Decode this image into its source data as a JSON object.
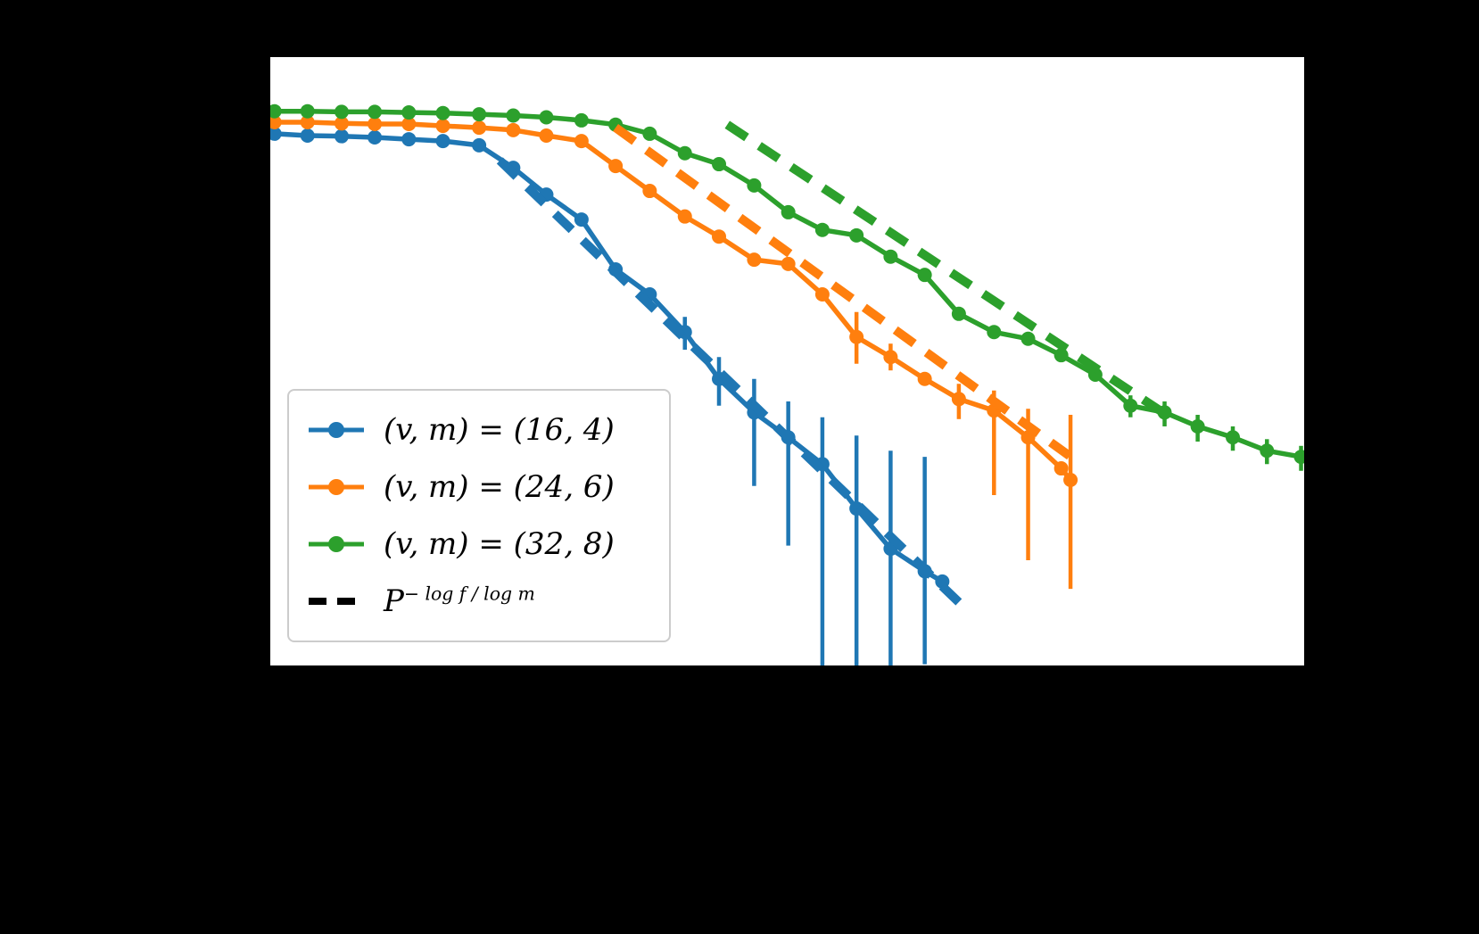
{
  "page": {
    "background_color": "#000000",
    "plot_background_color": "#ffffff",
    "axis_labels_visible": false
  },
  "chart_data": {
    "type": "line",
    "title": "",
    "xlabel": "",
    "ylabel": "",
    "grid": false,
    "legend_position": "lower-left",
    "note": "log-log style decay curves with error bars; axis tick labels not visible against black background; coordinates stored as fractions of plot area (x: 0=left..1=right, y: 0=top..1=bottom)",
    "series": [
      {
        "name": "(v, m) = (16, 4)",
        "color": "#1f77b4",
        "points": [
          [
            0.004,
            0.126
          ],
          [
            0.036,
            0.129
          ],
          [
            0.069,
            0.13
          ],
          [
            0.101,
            0.132
          ],
          [
            0.134,
            0.135
          ],
          [
            0.167,
            0.138
          ],
          [
            0.202,
            0.145
          ],
          [
            0.235,
            0.182
          ],
          [
            0.267,
            0.226
          ],
          [
            0.301,
            0.267
          ],
          [
            0.334,
            0.349
          ],
          [
            0.367,
            0.39
          ],
          [
            0.401,
            0.452
          ],
          [
            0.434,
            0.529
          ],
          [
            0.468,
            0.584
          ],
          [
            0.501,
            0.625
          ],
          [
            0.534,
            0.669
          ],
          [
            0.567,
            0.742
          ],
          [
            0.6,
            0.808
          ],
          [
            0.633,
            0.845
          ],
          [
            0.65,
            0.862
          ]
        ],
        "errorbars": [
          [
            0.401,
            0.427,
            0.481
          ],
          [
            0.434,
            0.493,
            0.573
          ],
          [
            0.468,
            0.529,
            0.705
          ],
          [
            0.501,
            0.566,
            0.803
          ],
          [
            0.534,
            0.592,
            1.0
          ],
          [
            0.567,
            0.622,
            1.0
          ],
          [
            0.6,
            0.647,
            1.0
          ],
          [
            0.633,
            0.657,
            0.998
          ]
        ]
      },
      {
        "name": "(v, m) = (24, 6)",
        "color": "#ff7f0e",
        "points": [
          [
            0.004,
            0.107
          ],
          [
            0.036,
            0.107
          ],
          [
            0.069,
            0.109
          ],
          [
            0.101,
            0.11
          ],
          [
            0.134,
            0.11
          ],
          [
            0.167,
            0.113
          ],
          [
            0.202,
            0.116
          ],
          [
            0.235,
            0.12
          ],
          [
            0.267,
            0.129
          ],
          [
            0.301,
            0.138
          ],
          [
            0.334,
            0.179
          ],
          [
            0.367,
            0.22
          ],
          [
            0.401,
            0.262
          ],
          [
            0.434,
            0.295
          ],
          [
            0.468,
            0.333
          ],
          [
            0.501,
            0.34
          ],
          [
            0.534,
            0.39
          ],
          [
            0.567,
            0.46
          ],
          [
            0.6,
            0.493
          ],
          [
            0.633,
            0.529
          ],
          [
            0.666,
            0.562
          ],
          [
            0.7,
            0.581
          ],
          [
            0.733,
            0.625
          ],
          [
            0.765,
            0.676
          ],
          [
            0.774,
            0.695
          ]
        ],
        "errorbars": [
          [
            0.567,
            0.419,
            0.504
          ],
          [
            0.6,
            0.471,
            0.515
          ],
          [
            0.666,
            0.537,
            0.595
          ],
          [
            0.7,
            0.548,
            0.72
          ],
          [
            0.733,
            0.578,
            0.827
          ],
          [
            0.774,
            0.588,
            0.874
          ]
        ]
      },
      {
        "name": "(v, m) = (32, 8)",
        "color": "#2ca02c",
        "points": [
          [
            0.004,
            0.089
          ],
          [
            0.036,
            0.089
          ],
          [
            0.069,
            0.09
          ],
          [
            0.101,
            0.09
          ],
          [
            0.134,
            0.091
          ],
          [
            0.167,
            0.092
          ],
          [
            0.202,
            0.094
          ],
          [
            0.235,
            0.096
          ],
          [
            0.267,
            0.099
          ],
          [
            0.301,
            0.104
          ],
          [
            0.334,
            0.111
          ],
          [
            0.367,
            0.126
          ],
          [
            0.401,
            0.158
          ],
          [
            0.434,
            0.176
          ],
          [
            0.468,
            0.211
          ],
          [
            0.501,
            0.255
          ],
          [
            0.534,
            0.284
          ],
          [
            0.567,
            0.293
          ],
          [
            0.6,
            0.328
          ],
          [
            0.633,
            0.358
          ],
          [
            0.666,
            0.422
          ],
          [
            0.7,
            0.452
          ],
          [
            0.733,
            0.463
          ],
          [
            0.765,
            0.49
          ],
          [
            0.798,
            0.522
          ],
          [
            0.832,
            0.573
          ],
          [
            0.865,
            0.584
          ],
          [
            0.897,
            0.607
          ],
          [
            0.931,
            0.625
          ],
          [
            0.964,
            0.647
          ],
          [
            0.997,
            0.657
          ]
        ],
        "errorbars": [
          [
            0.832,
            0.556,
            0.592
          ],
          [
            0.865,
            0.566,
            0.607
          ],
          [
            0.897,
            0.588,
            0.632
          ],
          [
            0.931,
            0.607,
            0.647
          ],
          [
            0.964,
            0.628,
            0.669
          ],
          [
            0.997,
            0.639,
            0.68
          ]
        ]
      }
    ],
    "fits": [
      {
        "for_series": "(v, m) = (16, 4)",
        "color": "#1f77b4",
        "from": [
          0.222,
          0.17
        ],
        "to": [
          0.666,
          0.896
        ]
      },
      {
        "for_series": "(v, m) = (24, 6)",
        "color": "#ff7f0e",
        "from": [
          0.334,
          0.116
        ],
        "to": [
          0.784,
          0.669
        ]
      },
      {
        "for_series": "(v, m) = (32, 8)",
        "color": "#2ca02c",
        "from": [
          0.442,
          0.111
        ],
        "to": [
          0.873,
          0.595
        ]
      }
    ],
    "legend": {
      "items": [
        {
          "label": "(v, m) = (16, 4)",
          "color": "#1f77b4",
          "type": "line-marker"
        },
        {
          "label": "(v, m) = (24, 6)",
          "color": "#ff7f0e",
          "type": "line-marker"
        },
        {
          "label": "(v, m) = (32, 8)",
          "color": "#2ca02c",
          "type": "line-marker"
        },
        {
          "label_base": "P",
          "label_sup": "− log f / log m",
          "color": "#000000",
          "type": "dashed-line"
        }
      ]
    }
  }
}
